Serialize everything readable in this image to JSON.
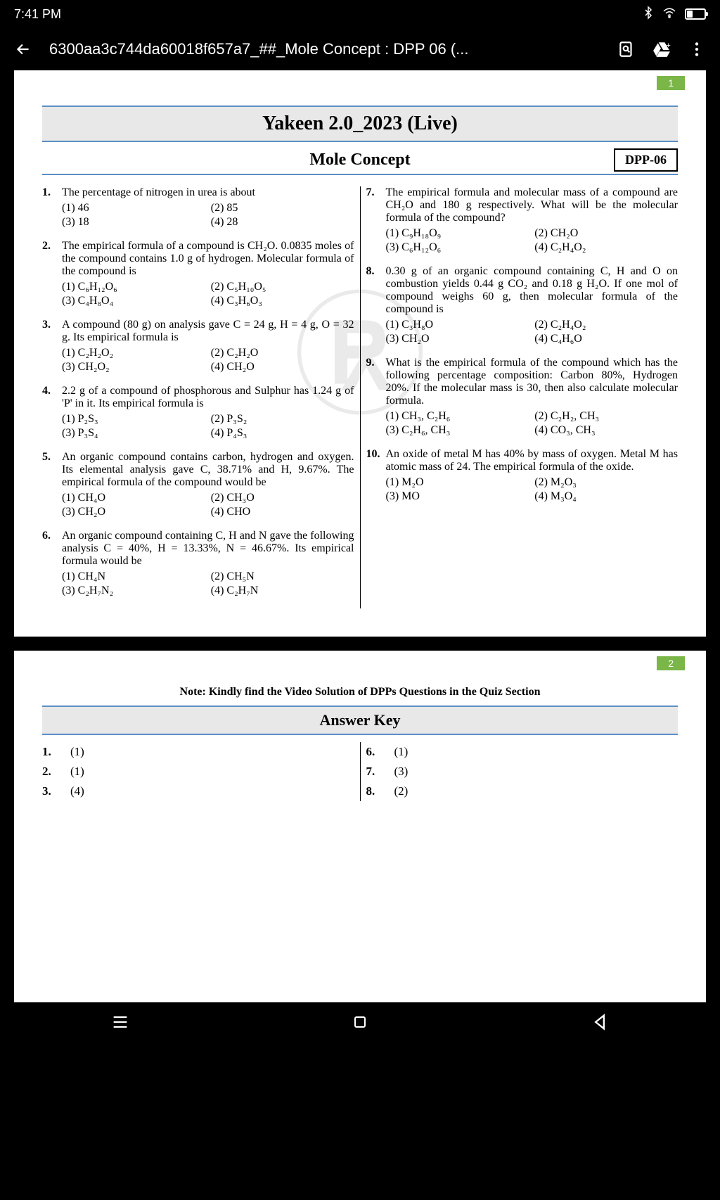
{
  "status": {
    "time": "7:41 PM"
  },
  "appbar": {
    "title": "6300aa3c744da60018f657a7_##_Mole Concept : DPP 06 (..."
  },
  "header": {
    "title": "Yakeen 2.0_2023 (Live)",
    "subtitle": "Mole Concept",
    "dpp": "DPP-06"
  },
  "page1num": "1",
  "page2num": "2",
  "questions_left": [
    {
      "n": "1.",
      "t": "The percentage of nitrogen in urea is about",
      "o": [
        "(1)  46",
        "(2)  85",
        "(3)  18",
        "(4)  28"
      ]
    },
    {
      "n": "2.",
      "t": "The empirical formula of a compound is CH₂O. 0.0835 moles of the compound contains 1.0 g of hydrogen. Molecular formula of the compound is",
      "o": [
        "(1)  C₆H₁₂O₆",
        "(2)  C₅H₁₀O₅",
        "(3)  C₄H₈O₄",
        "(4)  C₃H₆O₃"
      ]
    },
    {
      "n": "3.",
      "t": "A compound (80 g) on analysis gave C = 24 g, H = 4 g, O = 32 g. Its empirical formula is",
      "o": [
        "(1)  C₂H₂O₂",
        "(2)  C₂H₂O",
        "(3)  CH₂O₂",
        "(4)  CH₂O"
      ]
    },
    {
      "n": "4.",
      "t": "2.2 g of a compound of phosphorous and Sulphur has 1.24 g of 'P' in it. Its empirical formula is",
      "o": [
        "(1)  P₂S₃",
        "(2)  P₃S₂",
        "(3)  P₃S₄",
        "(4)  P₄S₃"
      ]
    },
    {
      "n": "5.",
      "t": "An organic compound contains carbon, hydrogen and oxygen. Its elemental analysis gave C, 38.71% and H, 9.67%. The empirical formula of the compound would be",
      "o": [
        "(1)  CH₄O",
        "(2)  CH₃O",
        "(3)  CH₂O",
        "(4)  CHO"
      ]
    },
    {
      "n": "6.",
      "t": "An organic compound containing C, H and N gave the following analysis C = 40%, H = 13.33%, N = 46.67%. Its empirical formula would be",
      "o": [
        "(1)  CH₄N",
        "(2)  CH₅N",
        "(3)  C₂H₇N₂",
        "(4)  C₂H₇N"
      ]
    }
  ],
  "questions_right": [
    {
      "n": "7.",
      "t": "The empirical formula and molecular mass of a compound are CH₂O and 180 g respectively. What will be the molecular formula of the compound?",
      "o": [
        "(1)  C₉H₁₈O₉",
        "(2)  CH₂O",
        "(3)  C₆H₁₂O₆",
        "(4)  C₂H₄O₂"
      ]
    },
    {
      "n": "8.",
      "t": "0.30 g of an organic compound containing C, H and O on combustion yields 0.44 g CO₂ and 0.18 g H₂O. If one mol of compound weighs 60 g, then molecular formula of the compound is",
      "o": [
        "(1)  C₃H₈O",
        "(2)  C₂H₄O₂",
        "(3)  CH₂O",
        "(4)  C₄H₆O"
      ]
    },
    {
      "n": "9.",
      "t": "What is the empirical formula of the compound which has the following percentage composition: Carbon 80%, Hydrogen 20%. If the molecular mass is 30, then also calculate molecular formula.",
      "o": [
        "(1)  CH₃, C₂H₆",
        "(2)  C₂H₂, CH₃",
        "(3)  C₂H₆, CH₃",
        "(4)  CO₃, CH₃"
      ]
    },
    {
      "n": "10.",
      "t": "An oxide of metal M has 40% by mass of oxygen. Metal M has atomic mass of 24. The empirical formula of the oxide.",
      "o": [
        "(1)  M₂O",
        "(2)  M₂O₃",
        "(3)  MO",
        "(4)  M₃O₄"
      ]
    }
  ],
  "note": "Note: Kindly find the Video Solution of DPPs Questions in the Quiz Section",
  "answer_header": "Answer Key",
  "answers_left": [
    {
      "n": "1.",
      "a": "(1)"
    },
    {
      "n": "2.",
      "a": "(1)"
    },
    {
      "n": "3.",
      "a": "(4)"
    }
  ],
  "answers_right": [
    {
      "n": "6.",
      "a": "(1)"
    },
    {
      "n": "7.",
      "a": "(3)"
    },
    {
      "n": "8.",
      "a": "(2)"
    }
  ]
}
